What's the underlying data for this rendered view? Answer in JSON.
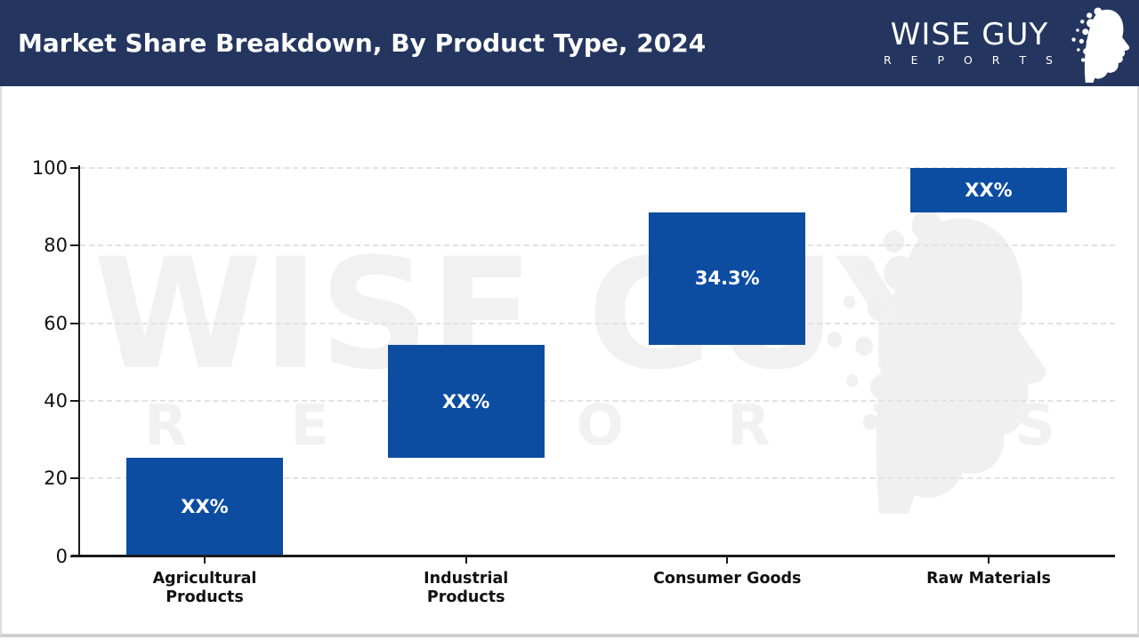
{
  "header": {
    "title": "Market Share Breakdown, By Product Type, 2024",
    "logo": {
      "name": "WISE GUY",
      "sub": "R E P O R T S"
    }
  },
  "watermark": {
    "line1": "WISE GUY",
    "line2": "R E P O R T S"
  },
  "chart_data": {
    "type": "bar",
    "variant": "waterfall",
    "title": "Market Share Breakdown, By Product Type, 2024",
    "categories": [
      [
        "Agricultural",
        "Products"
      ],
      [
        "Industrial",
        "Products"
      ],
      [
        "Consumer Goods"
      ],
      [
        "Raw Materials"
      ]
    ],
    "segments": [
      {
        "category": "Agricultural Products",
        "start": 0,
        "end": 25.4,
        "label": "XX%"
      },
      {
        "category": "Industrial Products",
        "start": 25.4,
        "end": 54.3,
        "label": "XX%"
      },
      {
        "category": "Consumer Goods",
        "start": 54.3,
        "end": 88.6,
        "label": "34.3%"
      },
      {
        "category": "Raw Materials",
        "start": 88.6,
        "end": 100,
        "label": "XX%"
      }
    ],
    "ylim": [
      0,
      100
    ],
    "yticks": [
      0,
      20,
      40,
      60,
      80,
      100
    ],
    "grid": "horizontal-dashed",
    "legend": "none",
    "colors": {
      "bar": "#0c4da2",
      "bar_label": "#ffffff",
      "axis": "#1a1a1a",
      "grid": "#e2e2e2",
      "header_bg": "#24365f",
      "watermark": "#f1f1f2"
    }
  }
}
